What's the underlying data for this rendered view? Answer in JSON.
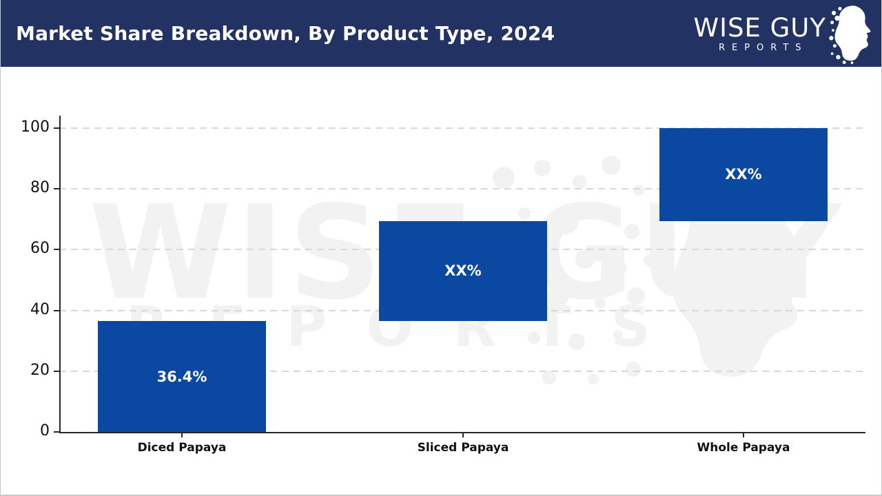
{
  "header": {
    "title": "Market Share Breakdown, By Product Type, 2024",
    "logo": {
      "line1": "WISE GUY",
      "line2": "REPORTS"
    }
  },
  "watermark": {
    "line1": "WISE GUY",
    "line2": "REPORTS"
  },
  "colors": {
    "header_bg": "#213263",
    "bar": "#0b48a2",
    "grid": "#d8d8d8",
    "axis": "#262626",
    "tick_text": "#111111",
    "bar_label_text": "#ffffff",
    "watermark": "#f2f2f2",
    "page_border": "#c9c9c9"
  },
  "chart_data": {
    "type": "bar",
    "subtype": "floating-waterfall",
    "title": "Market Share Breakdown, By Product Type, 2024",
    "categories": [
      "Diced Papaya",
      "Sliced Papaya",
      "Whole Papaya"
    ],
    "segments": [
      {
        "category": "Diced Papaya",
        "start": 0,
        "end": 36.4,
        "label": "36.4%"
      },
      {
        "category": "Sliced Papaya",
        "start": 36.4,
        "end": 69.5,
        "label": "XX%"
      },
      {
        "category": "Whole Papaya",
        "start": 69.5,
        "end": 100,
        "label": "XX%"
      }
    ],
    "xlabel": "",
    "ylabel": "",
    "yticks": [
      0,
      20,
      40,
      60,
      80,
      100
    ],
    "ylim": [
      0,
      104
    ],
    "grid": "dashed-horizontal",
    "legend": "none"
  }
}
